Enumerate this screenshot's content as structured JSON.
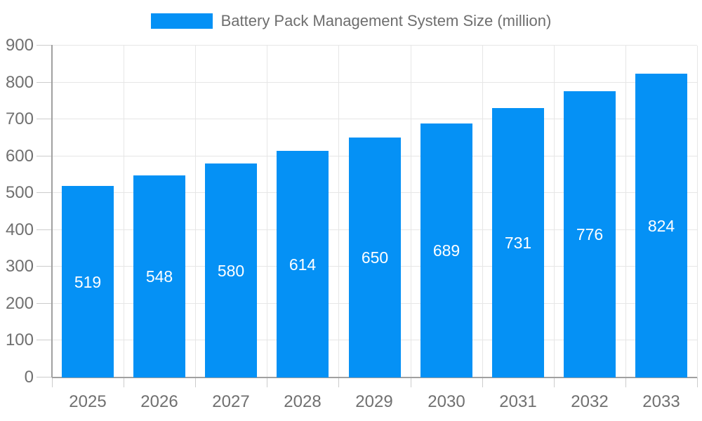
{
  "legend": {
    "label": "Battery Pack Management System Size (million)"
  },
  "chart_data": {
    "type": "bar",
    "title": "Battery Pack Management System Size (million)",
    "categories": [
      "2025",
      "2026",
      "2027",
      "2028",
      "2029",
      "2030",
      "2031",
      "2032",
      "2033"
    ],
    "values": [
      519,
      548,
      580,
      614,
      650,
      689,
      731,
      776,
      824
    ],
    "xlabel": "",
    "ylabel": "",
    "ylim": [
      0,
      900
    ],
    "yticks": [
      0,
      100,
      200,
      300,
      400,
      500,
      600,
      700,
      800,
      900
    ],
    "grid": true,
    "legend_position": "top-center",
    "value_labels": "inside-center"
  },
  "colors": {
    "bar": "#0591F5",
    "grid": "#E6E6E6",
    "tick": "#CCCCCC",
    "axis": "#A0A0A0",
    "axis_label": "#707070",
    "legend_text": "#6E6E6E",
    "value_label": "#FFFFFF",
    "background": "#FFFFFF"
  }
}
